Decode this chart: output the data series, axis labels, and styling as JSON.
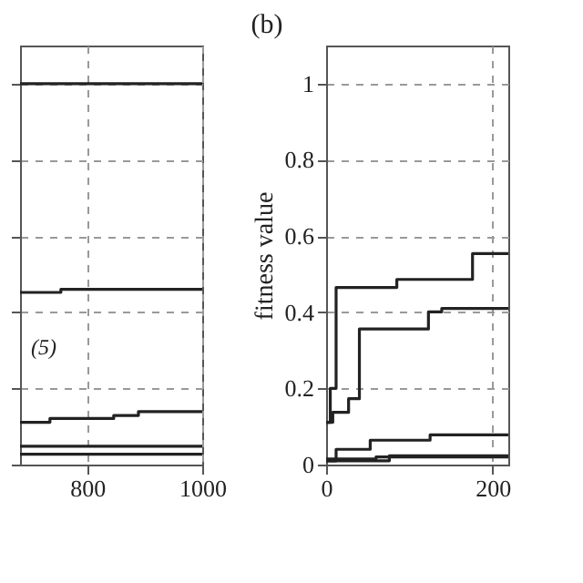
{
  "chart_data": [
    {
      "type": "step",
      "xlim": [
        683,
        1000
      ],
      "xticks": [
        800,
        1000
      ],
      "ylim": [
        0,
        1.1
      ],
      "yticks": [
        0,
        0.2,
        0.4,
        0.6,
        0.8,
        1
      ],
      "tick_labels": "x",
      "grid": true,
      "legend": false,
      "line_style": "solid",
      "marker": "none",
      "annotations": [
        "(5)"
      ],
      "series": [
        {
          "color": "#222222",
          "x": [
            683,
            1000
          ],
          "values": [
            1.0,
            1.0
          ]
        },
        {
          "color": "#222222",
          "x": [
            683,
            754,
            1000
          ],
          "values": [
            0.452,
            0.46,
            0.46
          ]
        },
        {
          "color": "#222222",
          "x": [
            683,
            735,
            846,
            889,
            1000
          ],
          "values": [
            0.111,
            0.121,
            0.129,
            0.139,
            0.139
          ]
        },
        {
          "color": "#222222",
          "x": [
            683,
            1000
          ],
          "values": [
            0.048,
            0.048
          ]
        },
        {
          "color": "#222222",
          "x": [
            683,
            1000
          ],
          "values": [
            0.027,
            0.027
          ]
        }
      ]
    },
    {
      "type": "step",
      "title": "(b)",
      "ylabel": "fitness value",
      "xlim": [
        0,
        219
      ],
      "xticks": [
        0,
        200
      ],
      "ylim": [
        0,
        1.1
      ],
      "yticks": [
        0,
        0.2,
        0.4,
        0.6,
        0.8,
        1
      ],
      "grid": true,
      "legend": false,
      "line_style": "solid",
      "marker": "none",
      "series": [
        {
          "color": "#222222",
          "x": [
            0,
            5,
            12,
            85,
            176,
            219
          ],
          "values": [
            0.111,
            0.2,
            0.465,
            0.486,
            0.554,
            0.554
          ]
        },
        {
          "color": "#222222",
          "x": [
            0,
            8,
            27,
            40,
            123,
            139,
            219
          ],
          "values": [
            0.111,
            0.137,
            0.173,
            0.356,
            0.401,
            0.41,
            0.41
          ]
        },
        {
          "color": "#222222",
          "x": [
            0,
            12,
            53,
            125,
            219
          ],
          "values": [
            0.01,
            0.04,
            0.064,
            0.078,
            0.078
          ]
        },
        {
          "color": "#222222",
          "x": [
            0,
            76,
            219
          ],
          "values": [
            0.01,
            0.023,
            0.023
          ]
        },
        {
          "color": "#222222",
          "x": [
            0,
            60,
            219
          ],
          "values": [
            0.015,
            0.02,
            0.02
          ]
        }
      ]
    }
  ]
}
